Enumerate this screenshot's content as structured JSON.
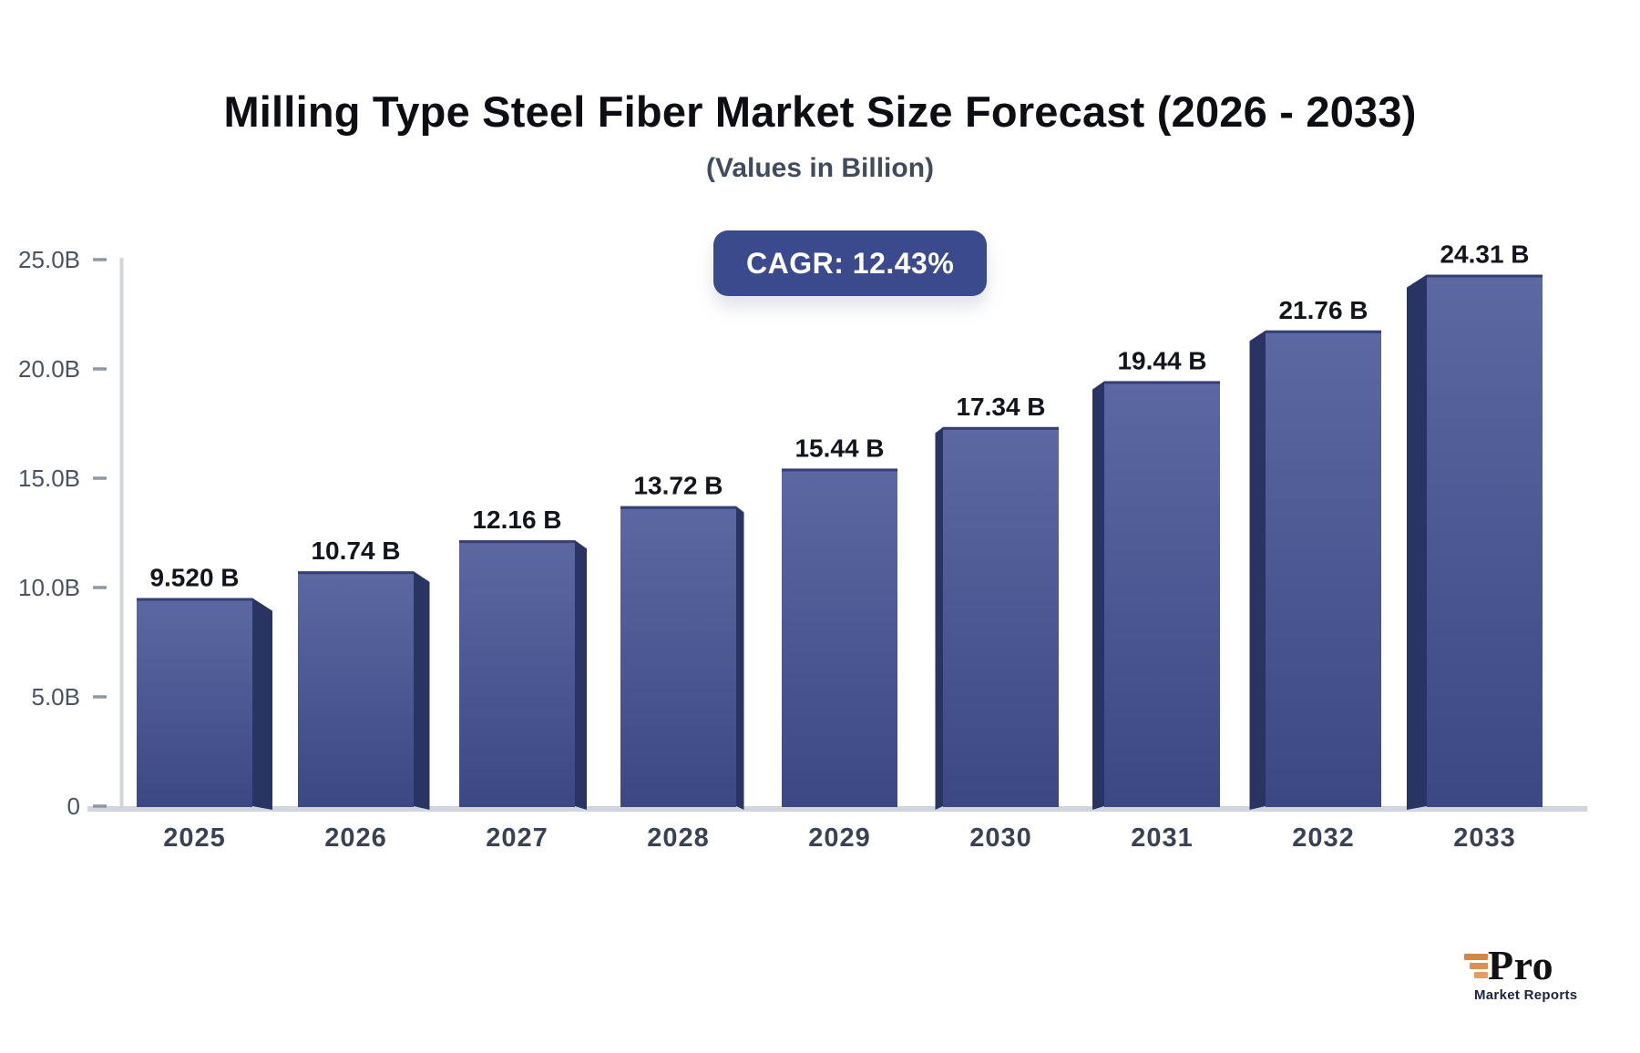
{
  "chart_data": {
    "type": "bar",
    "title": "Milling Type Steel Fiber Market Size Forecast (2026 - 2033)",
    "subtitle": "(Values in Billion)",
    "badge": "CAGR: 12.43%",
    "categories": [
      "2025",
      "2026",
      "2027",
      "2028",
      "2029",
      "2030",
      "2031",
      "2032",
      "2033"
    ],
    "values": [
      9.52,
      10.74,
      12.16,
      13.72,
      15.44,
      17.34,
      19.44,
      21.76,
      24.31
    ],
    "value_labels": [
      "9.520 B",
      "10.74 B",
      "12.16 B",
      "13.72 B",
      "15.44 B",
      "17.34 B",
      "19.44 B",
      "21.76 B",
      "24.31 B"
    ],
    "xlabel": "",
    "ylabel": "",
    "ylim": [
      0,
      25
    ],
    "yticks": [
      {
        "value": 0,
        "label": "0"
      },
      {
        "value": 5,
        "label": "5.0B"
      },
      {
        "value": 10,
        "label": "10.0B"
      },
      {
        "value": 15,
        "label": "15.0B"
      },
      {
        "value": 20,
        "label": "20.0B"
      },
      {
        "value": 25,
        "label": "25.0B"
      }
    ],
    "grid": false,
    "legend": null,
    "style": "3d-perspective-bars"
  },
  "colors": {
    "background": "#ffffff",
    "title": "#0c0e13",
    "subtitle": "#414b5e",
    "badge_bg": "#3b4a8c",
    "badge_text": "#ffffff",
    "bar_front_top": "#5c68a1",
    "bar_front_bottom": "#3c4884",
    "bar_side": "#2a3462",
    "bar_top_edge": "#353f76",
    "axis_line": "#d3d5de",
    "tick": "#9097a4",
    "tick_label": "#4b5263",
    "year_label": "#3a4153",
    "value_label": "#12151c",
    "logo_orange": "#dd8a4a",
    "logo_text": "#111111",
    "logo_tagline": "#1b2340"
  },
  "logo": {
    "name": "Pro",
    "tagline": "Market Reports"
  }
}
